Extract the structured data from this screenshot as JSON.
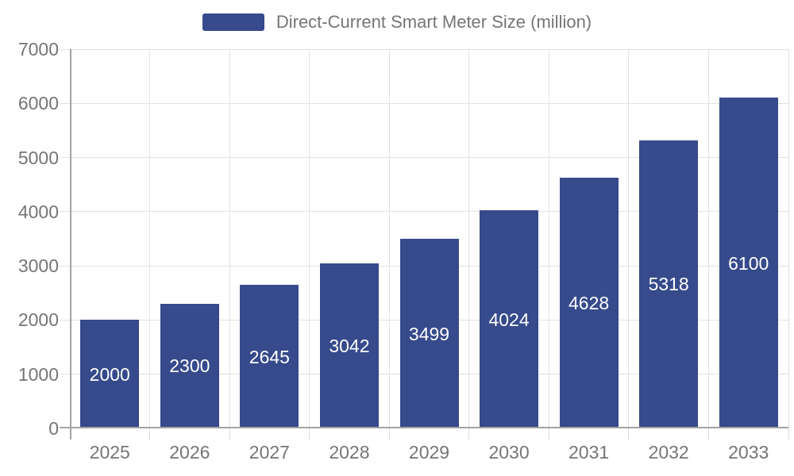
{
  "legend": {
    "label": "Direct-Current Smart Meter Size (million)"
  },
  "chart_data": {
    "type": "bar",
    "title": "Direct-Current Smart Meter Size (million)",
    "series_name": "Direct-Current Smart Meter Size (million)",
    "categories": [
      "2025",
      "2026",
      "2027",
      "2028",
      "2029",
      "2030",
      "2031",
      "2032",
      "2033"
    ],
    "values": [
      2000,
      2300,
      2645,
      3042,
      3499,
      4024,
      4628,
      5318,
      6100
    ],
    "xlabel": "",
    "ylabel": "",
    "ylim": [
      0,
      7000
    ],
    "y_ticks": [
      0,
      1000,
      2000,
      3000,
      4000,
      5000,
      6000,
      7000
    ],
    "grid": true,
    "legend_position": "top-center",
    "value_labels": "inside-center",
    "colors": {
      "bar": "#364A8C",
      "value_label": "#FFFFFF",
      "gridline": "#E2E2E2",
      "axis": "#A3A3A3",
      "tick": "#D8D8D8",
      "tick_label": "#757575",
      "legend_label": "#757575",
      "background": "#FFFFFF"
    }
  }
}
